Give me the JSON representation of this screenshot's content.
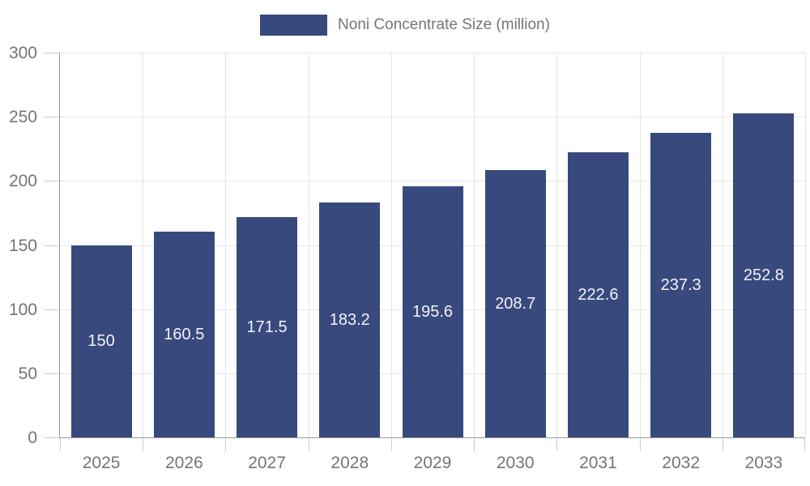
{
  "legend": {
    "label": "Noni Concentrate Size (million)"
  },
  "chart_data": {
    "type": "bar",
    "title": "",
    "xlabel": "",
    "ylabel": "",
    "categories": [
      "2025",
      "2026",
      "2027",
      "2028",
      "2029",
      "2030",
      "2031",
      "2032",
      "2033"
    ],
    "series": [
      {
        "name": "Noni Concentrate Size (million)",
        "values": [
          150,
          160.5,
          171.5,
          183.2,
          195.6,
          208.7,
          222.6,
          237.3,
          252.8
        ]
      }
    ],
    "value_labels": [
      "150",
      "160.5",
      "171.5",
      "183.2",
      "195.6",
      "208.7",
      "222.6",
      "237.3",
      "252.8"
    ],
    "ylim": [
      0,
      300
    ],
    "yticks": [
      0,
      50,
      100,
      150,
      200,
      250,
      300
    ],
    "grid": true,
    "legend_position": "top-center",
    "colors": {
      "bar": "#38497e",
      "value_label": "#f3f3f5",
      "axis_label": "#757575",
      "legend_text": "#757575",
      "grid_line": "#e5e5e5",
      "axis_line": "#999999",
      "tick_line": "#cccccc",
      "background": "#ffffff"
    }
  }
}
